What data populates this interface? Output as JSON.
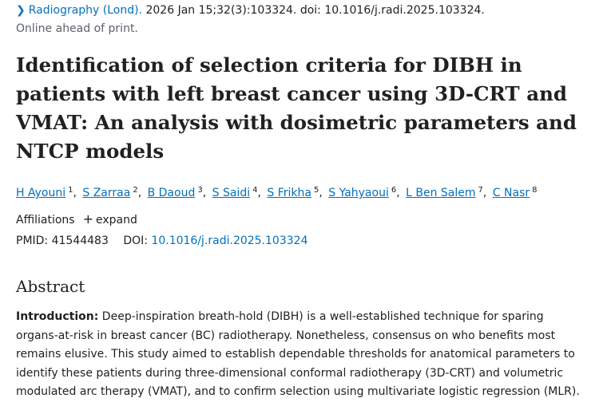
{
  "citation": {
    "journal": "Radiography (Lond).",
    "details": " 2026 Jan 15;32(3):103324. doi: 10.1016/j.radi.2025.103324.",
    "status": "Online ahead of print."
  },
  "article": {
    "title": "Identification of selection criteria for DIBH in patients with left breast cancer using 3D-CRT and VMAT: An analysis with dosimetric parameters and NTCP models"
  },
  "authors": [
    {
      "name": "H Ayouni",
      "sup": "1"
    },
    {
      "name": "S Zarraa",
      "sup": "2"
    },
    {
      "name": "B Daoud",
      "sup": "3"
    },
    {
      "name": "S Saidi",
      "sup": "4"
    },
    {
      "name": "S Frikha",
      "sup": "5"
    },
    {
      "name": "S Yahyaoui",
      "sup": "6"
    },
    {
      "name": "L Ben Salem",
      "sup": "7"
    },
    {
      "name": "C Nasr",
      "sup": "8"
    }
  ],
  "affiliations": {
    "label": "Affiliations",
    "expand": "expand"
  },
  "ids": {
    "pmid_label": "PMID:",
    "pmid": "41544483",
    "doi_label": "DOI:",
    "doi": "10.1016/j.radi.2025.103324"
  },
  "abstract": {
    "heading": "Abstract",
    "intro_label": "Introduction:",
    "intro_text": " Deep-inspiration breath-hold (DIBH) is a well-established technique for sparing organs-at-risk in breast cancer (BC) radiotherapy. Nonetheless, consensus on who benefits most remains elusive. This study aimed to establish dependable thresholds for anatomical parameters to identify these patients during three-dimensional conformal radiotherapy (3D-CRT) and volumetric modulated arc therapy (VMAT), and to confirm selection using multivariate logistic regression (MLR)."
  },
  "colors": {
    "link": "#0071bc",
    "text": "#212121",
    "muted": "#5b616b"
  }
}
